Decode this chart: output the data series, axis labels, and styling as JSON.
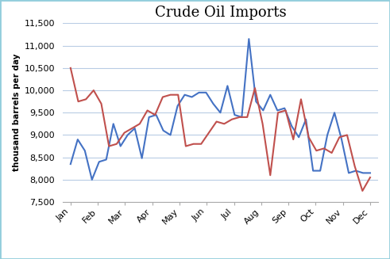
{
  "title": "Crude Oil Imports",
  "ylabel": "thousand barrels per day",
  "ylim": [
    7500,
    11500
  ],
  "yticks": [
    7500,
    8000,
    8500,
    9000,
    9500,
    10000,
    10500,
    11000,
    11500
  ],
  "months": [
    "Jan",
    "Feb",
    "Mar",
    "Apr",
    "May",
    "Jun",
    "Jul",
    "Aug",
    "Sep",
    "Oct",
    "Nov",
    "Dec"
  ],
  "color_2010": "#4472C4",
  "color_2009": "#C0504D",
  "line_width": 1.5,
  "data_2010": [
    8350,
    8900,
    8650,
    8000,
    8400,
    8450,
    9250,
    8750,
    9000,
    9150,
    8480,
    9400,
    9450,
    9100,
    9000,
    9650,
    9900,
    9850,
    9950,
    9950,
    9700,
    9500,
    10100,
    9450,
    9400,
    11150,
    9750,
    9550,
    9900,
    9550,
    9600,
    9200,
    8950,
    9350,
    8200,
    8200,
    9000,
    9500,
    8900,
    8150,
    8200,
    8150,
    8150
  ],
  "data_2009": [
    10500,
    9750,
    9800,
    10000,
    9700,
    8750,
    8800,
    9050,
    9150,
    9250,
    9550,
    9450,
    9850,
    9900,
    9900,
    8750,
    8800,
    8800,
    9050,
    9300,
    9250,
    9350,
    9400,
    9400,
    10050,
    9250,
    8100,
    9500,
    9550,
    8900,
    9800,
    8950,
    8650,
    8700,
    8600,
    8950,
    9000,
    8300,
    7750,
    8050
  ],
  "fig_bg_color": "#FFFFFF",
  "plot_bg_color": "#FFFFFF",
  "grid_color": "#B8CCE4",
  "border_color": "#92CDDC",
  "tick_label_color": "#000000",
  "title_color": "#000000"
}
